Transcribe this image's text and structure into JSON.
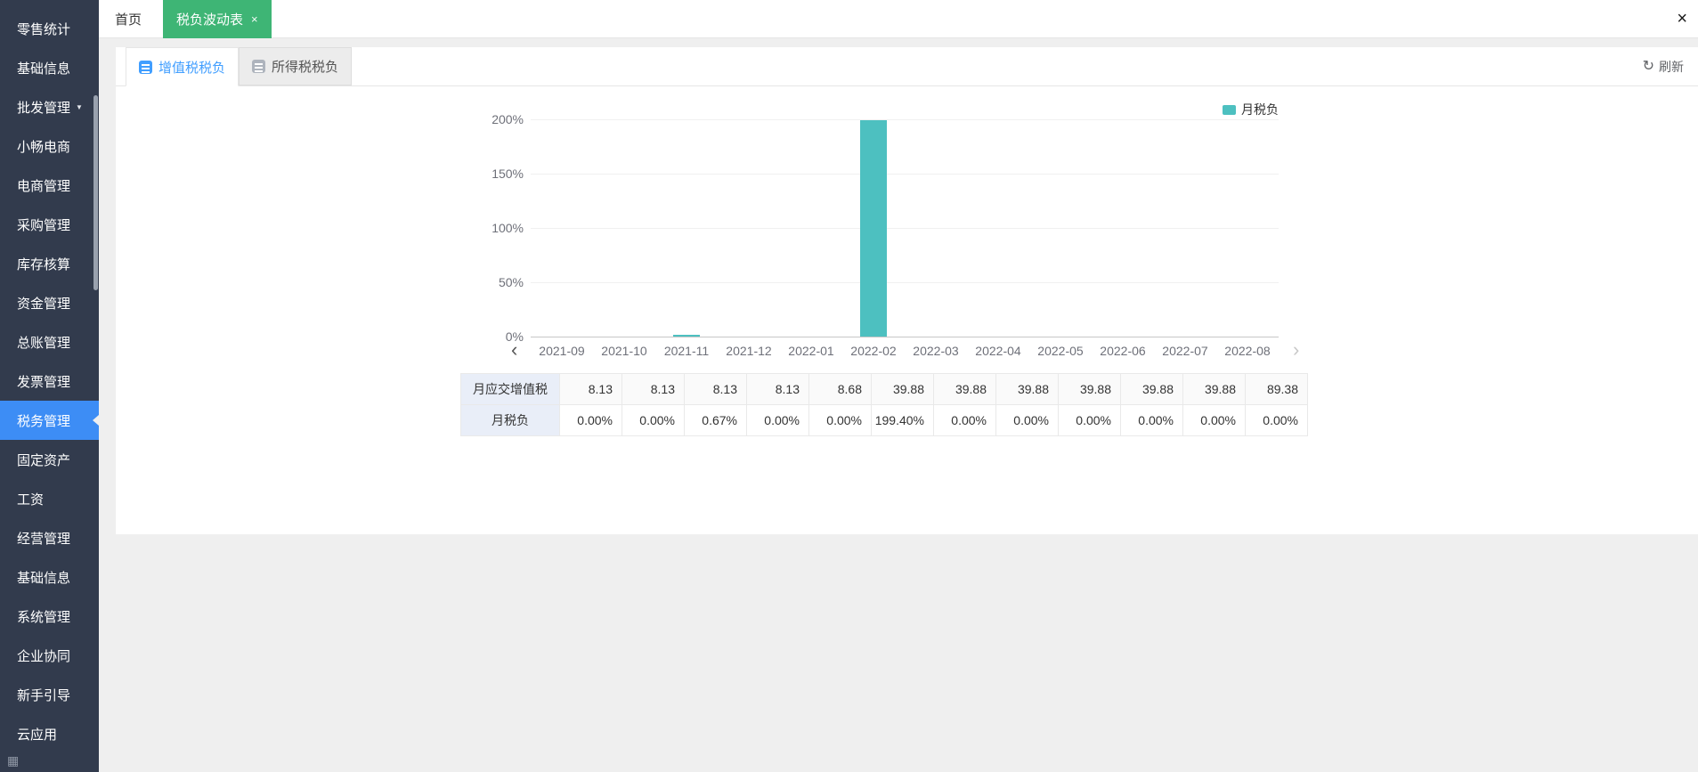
{
  "window": {
    "close": "×"
  },
  "sidebar": {
    "items": [
      {
        "name": "retail-statistics",
        "label": "零售统计"
      },
      {
        "name": "basic-information",
        "label": "基础信息"
      },
      {
        "name": "wholesale-management",
        "label": "批发管理",
        "caret": true
      },
      {
        "name": "xiaochang-ecommerce",
        "label": "小畅电商"
      },
      {
        "name": "ecommerce-management",
        "label": "电商管理"
      },
      {
        "name": "purchase-management",
        "label": "采购管理"
      },
      {
        "name": "inventory-accounting",
        "label": "库存核算"
      },
      {
        "name": "funds-management",
        "label": "资金管理"
      },
      {
        "name": "general-ledger",
        "label": "总账管理"
      },
      {
        "name": "invoice-management",
        "label": "发票管理"
      },
      {
        "name": "tax-management",
        "label": "税务管理",
        "active": true
      },
      {
        "name": "fixed-assets",
        "label": "固定资产"
      },
      {
        "name": "payroll",
        "label": "工资"
      },
      {
        "name": "business-management",
        "label": "经营管理"
      },
      {
        "name": "basic-information-2",
        "label": "基础信息"
      },
      {
        "name": "system-management",
        "label": "系统管理"
      },
      {
        "name": "enterprise-collaboration",
        "label": "企业协同"
      },
      {
        "name": "beginner-guide",
        "label": "新手引导"
      },
      {
        "name": "cloud-apps",
        "label": "云应用"
      }
    ]
  },
  "tabbar": {
    "home_label": "首页",
    "active_tab_label": "税负波动表",
    "tab_close": "×"
  },
  "panel": {
    "tabs": [
      {
        "label": "增值税税负",
        "active": true
      },
      {
        "label": "所得税税负",
        "active": false
      }
    ],
    "refresh_label": "刷新"
  },
  "chart_data": {
    "type": "bar",
    "title": "",
    "categories": [
      "2021-09",
      "2021-10",
      "2021-11",
      "2021-12",
      "2022-01",
      "2022-02",
      "2022-03",
      "2022-04",
      "2022-05",
      "2022-06",
      "2022-07",
      "2022-08"
    ],
    "series": [
      {
        "name": "月税负",
        "values": [
          0,
          0,
          0.67,
          0,
          0,
          199.4,
          0,
          0,
          0,
          0,
          0,
          0
        ],
        "unit": "%"
      }
    ],
    "legend": [
      "月税负"
    ],
    "legend_position": "top-right",
    "yticks": [
      "0%",
      "50%",
      "100%",
      "150%",
      "200%"
    ],
    "ylim": [
      0,
      200
    ],
    "grid": true,
    "bar_color": "#4dc0c0"
  },
  "table": {
    "rows": [
      {
        "name": "monthly-vat-payable",
        "header": "月应交增值税",
        "values": [
          "8.13",
          "8.13",
          "8.13",
          "8.13",
          "8.68",
          "39.88",
          "39.88",
          "39.88",
          "39.88",
          "39.88",
          "39.88",
          "89.38"
        ]
      },
      {
        "name": "monthly-tax-burden",
        "header": "月税负",
        "values": [
          "0.00%",
          "0.00%",
          "0.67%",
          "0.00%",
          "0.00%",
          "199.40%",
          "0.00%",
          "0.00%",
          "0.00%",
          "0.00%",
          "0.00%",
          "0.00%"
        ]
      }
    ]
  },
  "colors": {
    "sidebar_bg": "#323b4d",
    "sidebar_active": "#3d8df5",
    "green_tab": "#3eb575",
    "accent_blue": "#409eff",
    "bar_teal": "#4dc0c0",
    "content_bg": "#efefef",
    "row_header_bg": "#e9eef8"
  }
}
